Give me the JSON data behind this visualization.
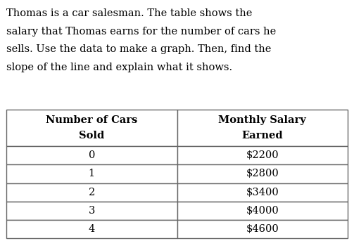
{
  "paragraph_lines": [
    "Thomas is a car salesman. The table shows the",
    "salary that Thomas earns for the number of cars he",
    "sells. Use the data to make a graph. Then, find the",
    "slope of the line and explain what it shows."
  ],
  "col1_header_line1": "Number of Cars",
  "col1_header_line2": "Sold",
  "col2_header_line1": "Monthly Salary",
  "col2_header_line2": "Earned",
  "rows": [
    [
      "0",
      "$2200"
    ],
    [
      "1",
      "$2800"
    ],
    [
      "2",
      "$3400"
    ],
    [
      "3",
      "$4000"
    ],
    [
      "4",
      "$4600"
    ]
  ],
  "background_color": "#ffffff",
  "text_color": "#000000",
  "border_color": "#666666",
  "header_fontsize": 10.5,
  "body_fontsize": 10.5,
  "para_fontsize": 10.5,
  "fig_width": 5.03,
  "fig_height": 3.43,
  "dpi": 100
}
